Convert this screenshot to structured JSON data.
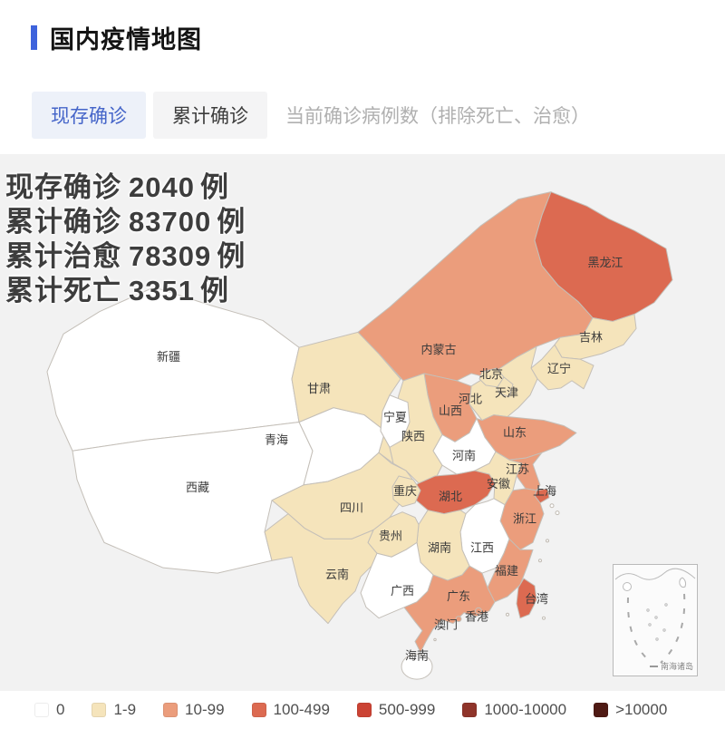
{
  "header": {
    "title": "国内疫情地图"
  },
  "tabs": [
    {
      "label": "现存确诊",
      "active": true
    },
    {
      "label": "累计确诊",
      "active": false
    }
  ],
  "tabs_note": "当前确诊病例数（排除死亡、治愈）",
  "stats": [
    {
      "label": "现存确诊",
      "value": "2040",
      "unit": "例"
    },
    {
      "label": "累计确诊",
      "value": "83700",
      "unit": "例"
    },
    {
      "label": "累计治愈",
      "value": "78309",
      "unit": "例"
    },
    {
      "label": "累计死亡",
      "value": "3351",
      "unit": "例"
    }
  ],
  "legend": [
    {
      "label": "0",
      "color": "#ffffff"
    },
    {
      "label": "1-9",
      "color": "#f5e4bb"
    },
    {
      "label": "10-99",
      "color": "#eb9d7c"
    },
    {
      "label": "100-499",
      "color": "#dc6a51"
    },
    {
      "label": "500-999",
      "color": "#cb4334"
    },
    {
      "label": "1000-10000",
      "color": "#8f342a"
    },
    {
      "label": ">10000",
      "color": "#4f1a14"
    }
  ],
  "map": {
    "inset_label": "南海诸岛",
    "provinces": [
      {
        "id": "xinjiang",
        "name": "新疆",
        "level": "0"
      },
      {
        "id": "xizang",
        "name": "西藏",
        "level": "0"
      },
      {
        "id": "qinghai",
        "name": "青海",
        "level": "0"
      },
      {
        "id": "gansu",
        "name": "甘肃",
        "level": "1-9"
      },
      {
        "id": "neimenggu",
        "name": "内蒙古",
        "level": "10-99"
      },
      {
        "id": "heilongjiang",
        "name": "黑龙江",
        "level": "100-499"
      },
      {
        "id": "jilin",
        "name": "吉林",
        "level": "1-9"
      },
      {
        "id": "liaoning",
        "name": "辽宁",
        "level": "1-9"
      },
      {
        "id": "hebei",
        "name": "河北",
        "level": "1-9"
      },
      {
        "id": "beijing",
        "name": "北京",
        "level": "1-9"
      },
      {
        "id": "tianjin",
        "name": "天津",
        "level": "1-9"
      },
      {
        "id": "shanxi",
        "name": "山西",
        "level": "10-99"
      },
      {
        "id": "shaanxi",
        "name": "陕西",
        "level": "1-9"
      },
      {
        "id": "ningxia",
        "name": "宁夏",
        "level": "0"
      },
      {
        "id": "shandong",
        "name": "山东",
        "level": "10-99"
      },
      {
        "id": "henan",
        "name": "河南",
        "level": "0"
      },
      {
        "id": "sichuan",
        "name": "四川",
        "level": "1-9"
      },
      {
        "id": "hubei",
        "name": "湖北",
        "level": "100-499"
      },
      {
        "id": "chongqing",
        "name": "重庆",
        "level": "1-9"
      },
      {
        "id": "anhui",
        "name": "安徽",
        "level": "1-9"
      },
      {
        "id": "jiangsu",
        "name": "江苏",
        "level": "10-99"
      },
      {
        "id": "shanghai",
        "name": "上海",
        "level": "100-499"
      },
      {
        "id": "zhejiang",
        "name": "浙江",
        "level": "10-99"
      },
      {
        "id": "jiangxi",
        "name": "江西",
        "level": "0"
      },
      {
        "id": "hunan",
        "name": "湖南",
        "level": "1-9"
      },
      {
        "id": "guizhou",
        "name": "贵州",
        "level": "1-9"
      },
      {
        "id": "yunnan",
        "name": "云南",
        "level": "1-9"
      },
      {
        "id": "guangxi",
        "name": "广西",
        "level": "0"
      },
      {
        "id": "guangdong",
        "name": "广东",
        "level": "10-99"
      },
      {
        "id": "fujian",
        "name": "福建",
        "level": "10-99"
      },
      {
        "id": "taiwan",
        "name": "台湾",
        "level": "100-499"
      },
      {
        "id": "hainan",
        "name": "海南",
        "level": "0"
      },
      {
        "id": "xianggang",
        "name": "香港",
        "level": "10-99"
      },
      {
        "id": "aomen",
        "name": "澳门",
        "level": "10-99"
      }
    ]
  }
}
